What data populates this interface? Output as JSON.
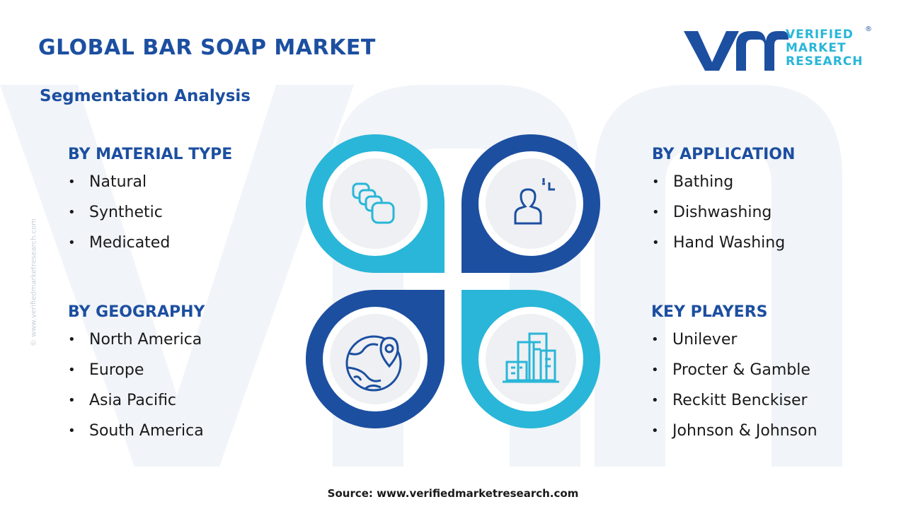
{
  "title": "GLOBAL BAR SOAP MARKET",
  "subtitle": "Segmentation Analysis",
  "logo": {
    "line1": "VERIFIED",
    "line2": "MARKET",
    "line3": "RESEARCH",
    "registered": "®"
  },
  "side_url": "© www.verifiedmarketresearch.com",
  "colors": {
    "dark_blue": "#1c4fa0",
    "light_blue": "#29b6d8",
    "text": "#1a1a1a"
  },
  "sections": {
    "material": {
      "heading": "BY MATERIAL TYPE",
      "items": [
        "Natural",
        "Synthetic",
        "Medicated"
      ]
    },
    "application": {
      "heading": "BY APPLICATION",
      "items": [
        "Bathing",
        "Dishwashing",
        "Hand Washing"
      ]
    },
    "geography": {
      "heading": "BY GEOGRAPHY",
      "items": [
        "North America",
        "Europe",
        "Asia Pacific",
        "South America"
      ]
    },
    "players": {
      "heading": "KEY PLAYERS",
      "items": [
        "Unilever",
        "Procter & Gamble",
        "Reckitt Benckiser",
        "Johnson & Johnson"
      ]
    }
  },
  "icons": [
    "soap-bars-icon",
    "user-application-icon",
    "globe-location-icon",
    "city-buildings-icon"
  ],
  "source": "Source: www.verifiedmarketresearch.com"
}
